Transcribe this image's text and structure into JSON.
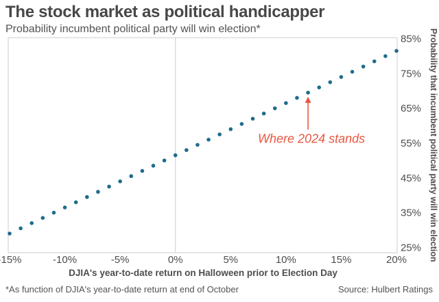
{
  "header": {
    "title": "The stock market as political handicapper",
    "subtitle": "Probability incumbent political party will win election*"
  },
  "chart_data": {
    "type": "scatter",
    "title": "The stock market as political handicapper",
    "subtitle": "Probability incumbent political party will win election*",
    "xlabel": "DJIA's year-to-date return on Halloween prior to Election Day",
    "ylabel": "Probability that incumbent political party will win election",
    "x": [
      -15,
      -14,
      -13,
      -12,
      -11,
      -10,
      -9,
      -8,
      -7,
      -6,
      -5,
      -4,
      -3,
      -2,
      -1,
      0,
      1,
      2,
      3,
      4,
      5,
      6,
      7,
      8,
      9,
      10,
      11,
      12,
      13,
      14,
      15,
      16,
      17,
      18,
      19,
      20
    ],
    "values": [
      29,
      30.5,
      32,
      33.5,
      35,
      36.5,
      38,
      39.5,
      41,
      42.5,
      44,
      45.5,
      47,
      48.5,
      50,
      51.5,
      53,
      54.5,
      56,
      57.5,
      59,
      60.5,
      62,
      63.5,
      65,
      66.5,
      68,
      69.5,
      71,
      72.5,
      74,
      75.5,
      77,
      78.5,
      80,
      81.5
    ],
    "x_ticks": [
      -15,
      -10,
      -5,
      0,
      5,
      10,
      15,
      20
    ],
    "y_ticks": [
      85,
      75,
      65,
      55,
      45,
      35,
      25
    ],
    "tick_suffix": "%",
    "xlim": [
      -15,
      20
    ],
    "ylim": [
      23.5,
      85.3
    ],
    "grid_x_at": 0,
    "legend": "none",
    "dot_color": "#1e6c8d",
    "border_color": "#cccccc",
    "annotation": {
      "text": "Where 2024 stands",
      "x": 12,
      "points_to_value": 69.5,
      "color": "#e8573f"
    }
  },
  "footer": {
    "footnote": "*As function of DJIA's year-to-date return at end of October",
    "source": "Source: Hulbert Ratings"
  }
}
